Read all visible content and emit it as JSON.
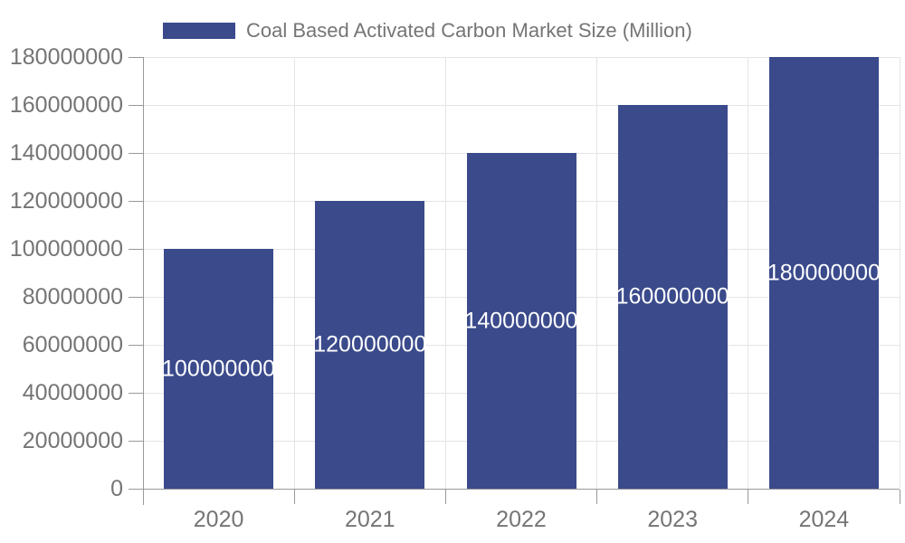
{
  "chart": {
    "legend": {
      "items": [
        {
          "label": "Coal Based Activated Carbon Market Size (Million)",
          "swatch_color": "#3A4A8B"
        }
      ],
      "position": "top-left"
    }
  },
  "chart_data": {
    "type": "bar",
    "title": "Coal Based Activated Carbon Market Size (Million)",
    "categories": [
      "2020",
      "2021",
      "2022",
      "2023",
      "2024"
    ],
    "values": [
      100000000,
      120000000,
      140000000,
      160000000,
      180000000
    ],
    "bar_labels": [
      "100000000",
      "120000000",
      "140000000",
      "160000000",
      "180000000"
    ],
    "xlabel": "",
    "ylabel": "",
    "ylim": [
      0,
      180000000
    ],
    "ytick_interval": 20000000,
    "ytick_labels": [
      "0",
      "20000000",
      "40000000",
      "60000000",
      "80000000",
      "100000000",
      "120000000",
      "140000000",
      "160000000",
      "180000000"
    ],
    "grid": true,
    "legend_position": "top",
    "colors": {
      "bar": "#3A4A8B",
      "grid_line": "#E4E4E8",
      "axis_line": "#999999",
      "tick_label": "#757575",
      "title": "#757575",
      "bar_label": "#FFFFFF",
      "background": "#FFFFFF"
    }
  }
}
